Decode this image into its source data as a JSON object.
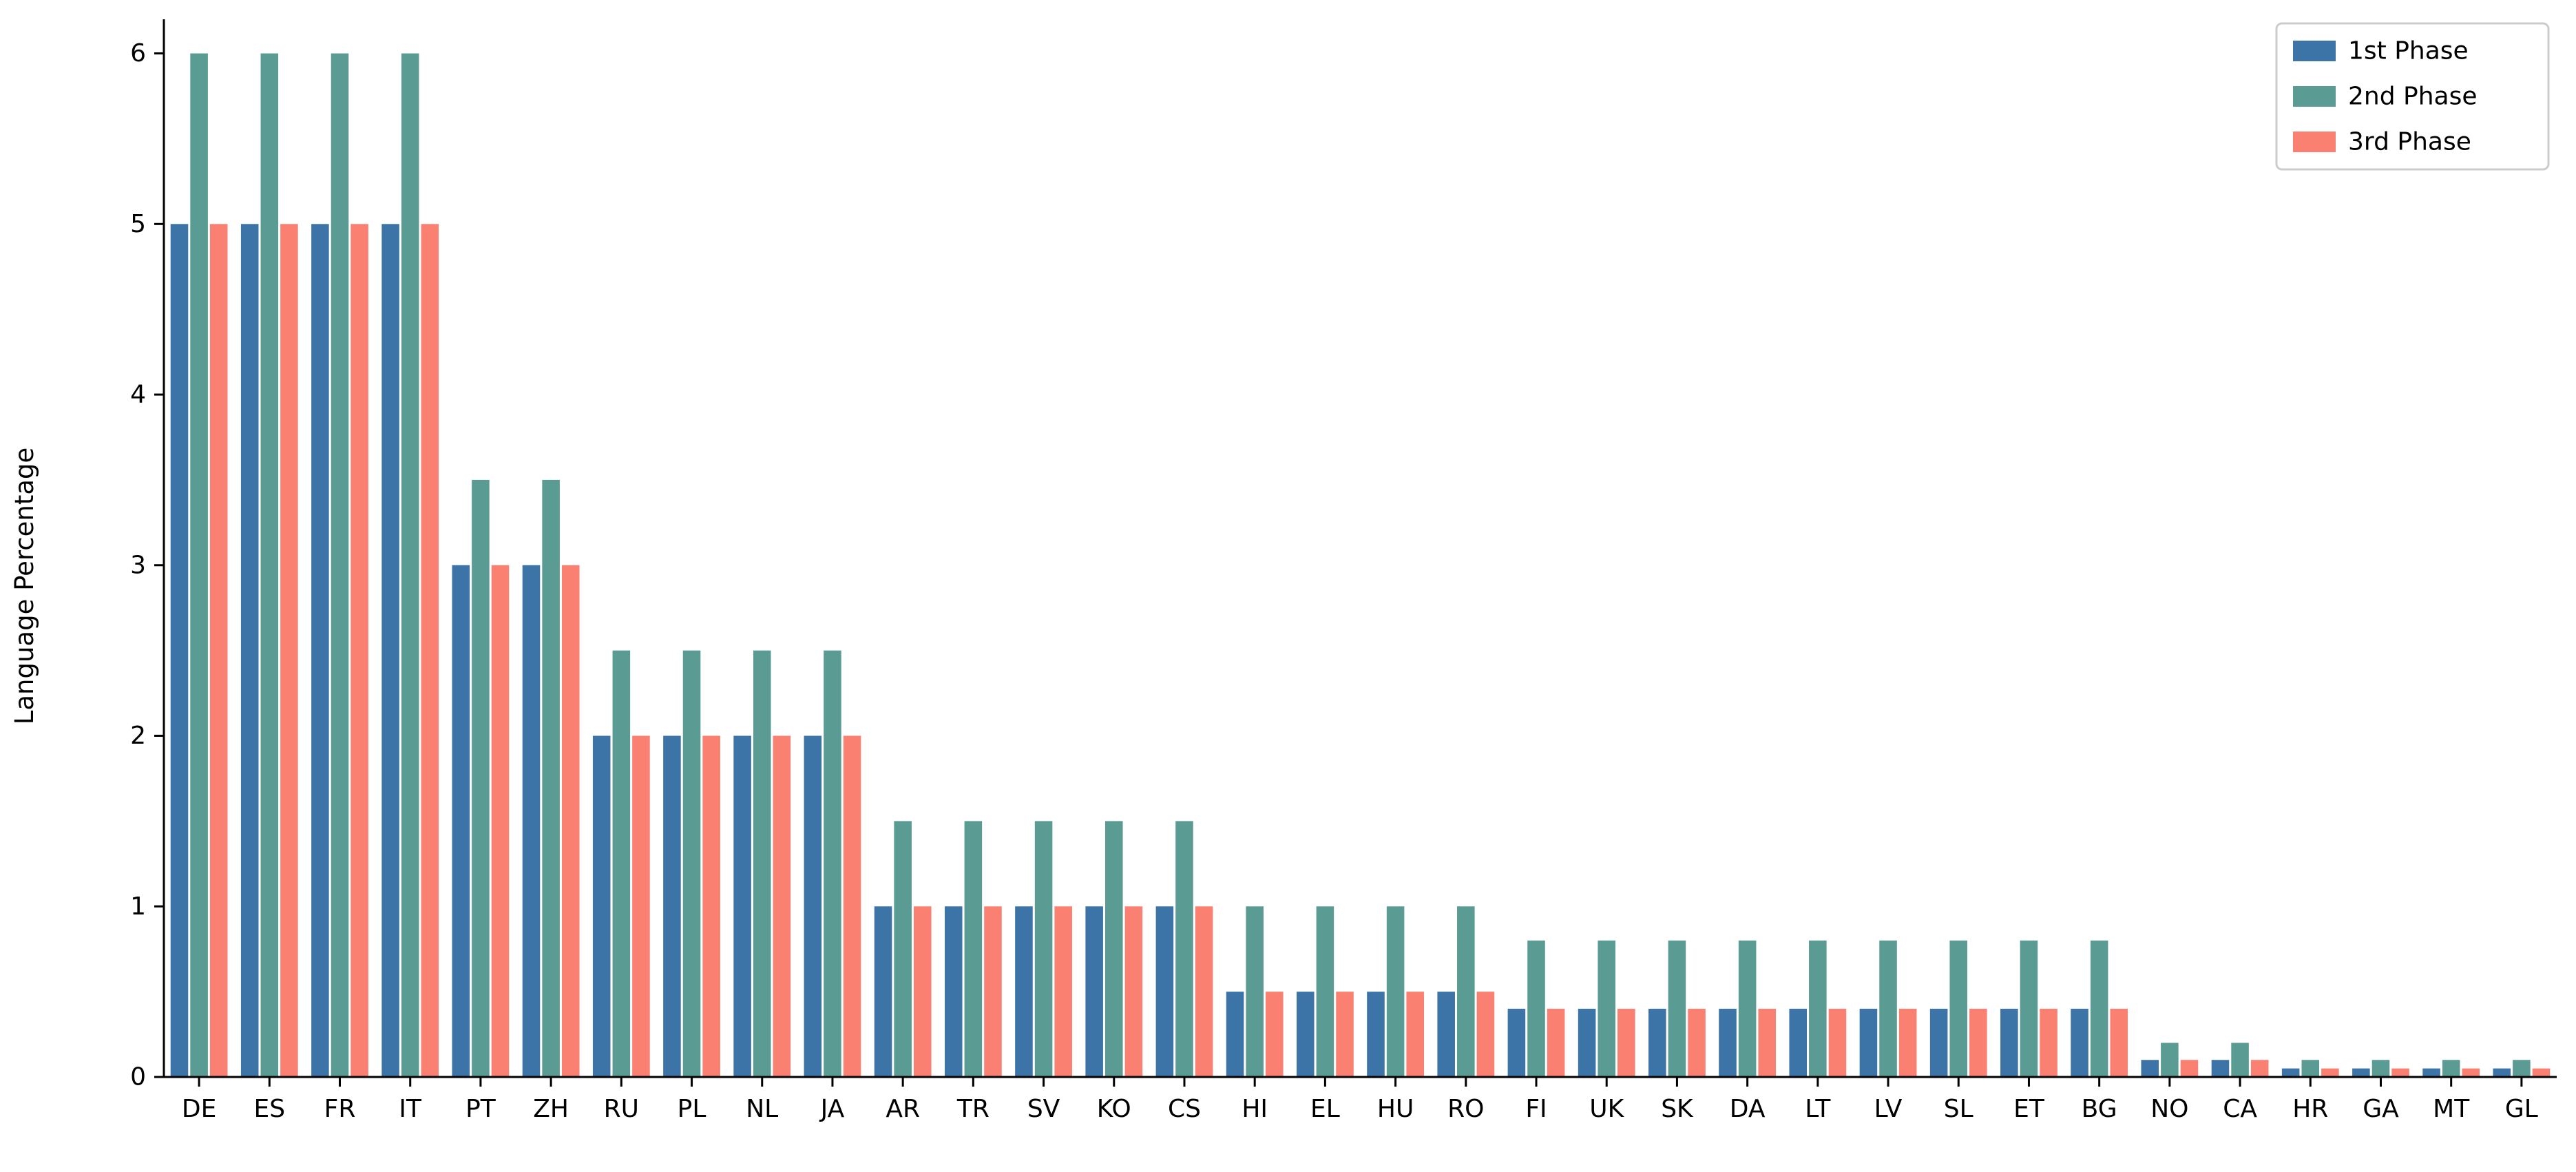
{
  "chart_data": {
    "type": "bar",
    "title": "",
    "xlabel": "",
    "ylabel": "Language Percentage",
    "ylim": [
      0,
      6.2
    ],
    "yticks": [
      0,
      1,
      2,
      3,
      4,
      5,
      6
    ],
    "grid": false,
    "legend_position": "upper right",
    "categories": [
      "DE",
      "ES",
      "FR",
      "IT",
      "PT",
      "ZH",
      "RU",
      "PL",
      "NL",
      "JA",
      "AR",
      "TR",
      "SV",
      "KO",
      "CS",
      "HI",
      "EL",
      "HU",
      "RO",
      "FI",
      "UK",
      "SK",
      "DA",
      "LT",
      "LV",
      "SL",
      "ET",
      "BG",
      "NO",
      "CA",
      "HR",
      "GA",
      "MT",
      "GL"
    ],
    "series": [
      {
        "name": "1st Phase",
        "color": "#3d74a8",
        "values": [
          5,
          5,
          5,
          5,
          3,
          3,
          2,
          2,
          2,
          2,
          1,
          1,
          1,
          1,
          1,
          0.5,
          0.5,
          0.5,
          0.5,
          0.4,
          0.4,
          0.4,
          0.4,
          0.4,
          0.4,
          0.4,
          0.4,
          0.4,
          0.1,
          0.1,
          0.05,
          0.05,
          0.05,
          0.05
        ]
      },
      {
        "name": "2nd Phase",
        "color": "#5a9b93",
        "values": [
          6,
          6,
          6,
          6,
          3.5,
          3.5,
          2.5,
          2.5,
          2.5,
          2.5,
          1.5,
          1.5,
          1.5,
          1.5,
          1.5,
          1,
          1,
          1,
          1,
          0.8,
          0.8,
          0.8,
          0.8,
          0.8,
          0.8,
          0.8,
          0.8,
          0.8,
          0.2,
          0.2,
          0.1,
          0.1,
          0.1,
          0.1
        ]
      },
      {
        "name": "3rd Phase",
        "color": "#fa8072",
        "values": [
          5,
          5,
          5,
          5,
          3,
          3,
          2,
          2,
          2,
          2,
          1,
          1,
          1,
          1,
          1,
          0.5,
          0.5,
          0.5,
          0.5,
          0.4,
          0.4,
          0.4,
          0.4,
          0.4,
          0.4,
          0.4,
          0.4,
          0.4,
          0.1,
          0.1,
          0.05,
          0.05,
          0.05,
          0.05
        ]
      }
    ],
    "axis_color": "#000000",
    "legend_border_color": "#cccccc",
    "background_color": "#ffffff"
  }
}
